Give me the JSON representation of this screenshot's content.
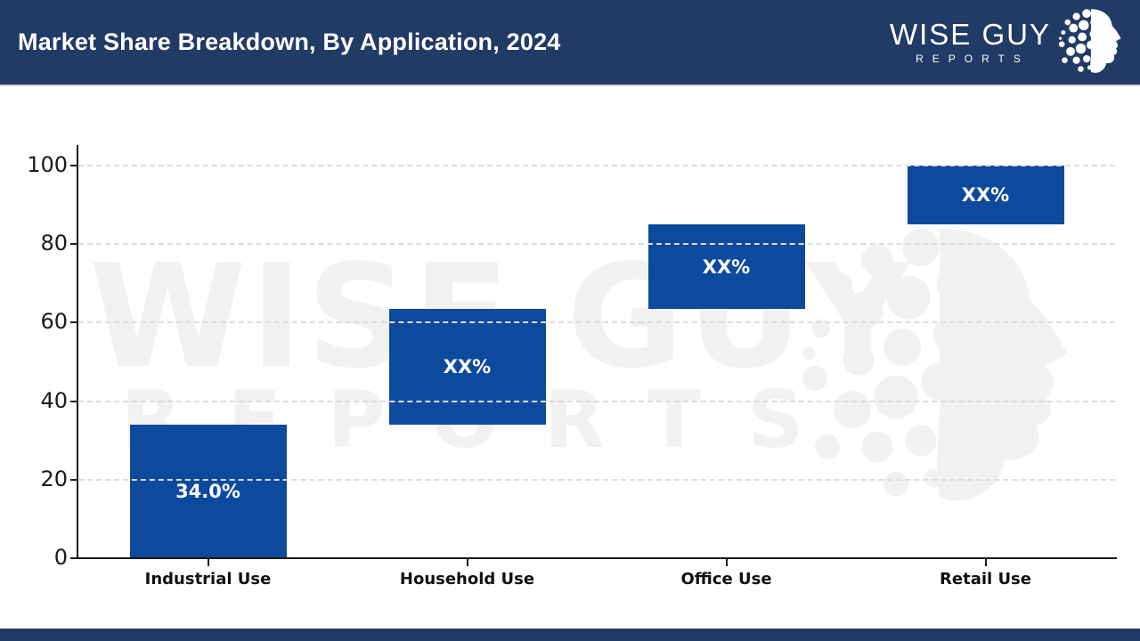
{
  "header": {
    "title": "Market Share Breakdown, By Application, 2024",
    "bg_color": "#213a66",
    "logo": {
      "line1": "WISE GUY",
      "line2": "REPORTS"
    }
  },
  "watermark": {
    "line1": "WISE GUY",
    "line2": "REPORTS"
  },
  "chart_data": {
    "type": "bar",
    "subtype": "floating-segment-waterfall",
    "title": "Market Share Breakdown, By Application, 2024",
    "categories": [
      "Industrial Use",
      "Household Use",
      "Office Use",
      "Retail Use"
    ],
    "segments": [
      [
        0,
        34
      ],
      [
        34,
        63.5
      ],
      [
        63.5,
        85
      ],
      [
        85,
        100
      ]
    ],
    "values": [
      34,
      29.5,
      21.5,
      15
    ],
    "bar_labels": [
      "34.0%",
      "XX%",
      "XX%",
      "XX%"
    ],
    "xlabel": "",
    "ylabel": "",
    "ylim": [
      0,
      100
    ],
    "yticks": [
      "0",
      "20",
      "40",
      "60",
      "80",
      "100"
    ],
    "ytick_values": [
      0,
      20,
      40,
      60,
      80,
      100
    ],
    "grid": "horizontal dashed, drawn above bars",
    "legend": "none",
    "bar_color": "#0d4a9e",
    "bar_label_color": "#ffffff",
    "axis_color": "#1a1a1a"
  },
  "footer": {
    "bg_color": "#213a66"
  }
}
